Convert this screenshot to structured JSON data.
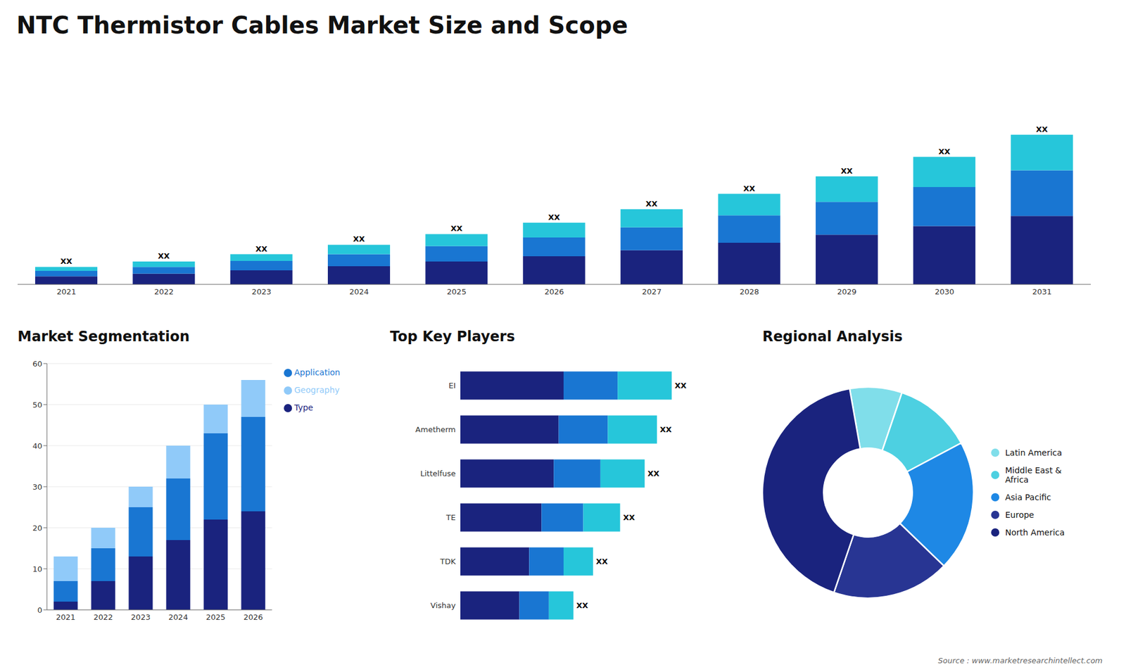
{
  "title": "NTC Thermistor Cables Market Size and Scope",
  "annotations": [
    "Source : www.marketresearchintellect.com"
  ],
  "chart_data": [
    {
      "type": "bar",
      "stacked": true,
      "categories": [
        "2021",
        "2022",
        "2023",
        "2024",
        "2025",
        "2026",
        "2027",
        "2028",
        "2029",
        "2030",
        "2031"
      ],
      "series": [
        {
          "color": "#1a237e",
          "values": [
            1.2,
            1.6,
            2.1,
            2.7,
            3.4,
            4.2,
            5.1,
            6.2,
            7.4,
            8.7,
            10.2
          ]
        },
        {
          "color": "#1976d2",
          "values": [
            0.8,
            1.0,
            1.4,
            1.8,
            2.3,
            2.8,
            3.4,
            4.1,
            4.9,
            5.8,
            6.8
          ]
        },
        {
          "color": "#26c6da",
          "values": [
            0.6,
            0.8,
            1.0,
            1.4,
            1.8,
            2.2,
            2.7,
            3.2,
            3.8,
            4.5,
            5.3
          ],
          "value_labels": [
            "XX",
            "XX",
            "XX",
            "XX",
            "XX",
            "XX",
            "XX",
            "XX",
            "XX",
            "XX",
            "XX"
          ]
        }
      ],
      "ylim": [
        0,
        32.335
      ],
      "tick_labels": "x"
    },
    {
      "type": "bar",
      "title": "Market Segmentation",
      "stacked": true,
      "categories": [
        "2021",
        "2022",
        "2023",
        "2024",
        "2025",
        "2026"
      ],
      "series": [
        {
          "name": "Type",
          "color": "#1a237e",
          "values": [
            2,
            7,
            13,
            17,
            22,
            24
          ]
        },
        {
          "name": "Application",
          "color": "#1976d2",
          "values": [
            5,
            8,
            12,
            15,
            21,
            23
          ]
        },
        {
          "name": "Geography",
          "color": "#90caf9",
          "values": [
            6,
            5,
            5,
            8,
            7,
            9
          ]
        }
      ],
      "ylim": [
        0,
        60
      ],
      "yticks": [
        0,
        10,
        20,
        30,
        40,
        50,
        60
      ],
      "grid": true,
      "legend": "right"
    },
    {
      "type": "bar",
      "title": "Top Key Players",
      "orientation": "horizontal",
      "stacked": true,
      "categories": [
        "EI",
        "Ametherm",
        "Littelfuse",
        "TE",
        "TDK",
        "Vishay"
      ],
      "series": [
        {
          "color": "#1a237e",
          "values": [
            0.42,
            0.4,
            0.38,
            0.33,
            0.28,
            0.24
          ]
        },
        {
          "color": "#1976d2",
          "values": [
            0.22,
            0.2,
            0.19,
            0.17,
            0.14,
            0.12
          ]
        },
        {
          "color": "#26c6da",
          "values": [
            0.22,
            0.2,
            0.18,
            0.15,
            0.12,
            0.1
          ],
          "value_labels": [
            "XX",
            "XX",
            "XX",
            "XX",
            "XX",
            "XX"
          ]
        }
      ],
      "xlim": [
        0,
        1.05
      ],
      "tick_labels": "y"
    },
    {
      "type": "pie",
      "title": "Regional Analysis",
      "categories": [
        "Latin America",
        "Middle East &\nAfrica",
        "Asia Pacific",
        "Europe",
        "North America"
      ],
      "values": [
        8,
        12,
        20,
        18,
        42
      ],
      "colors": [
        "#80deea",
        "#4dd0e1",
        "#1e88e5",
        "#283593",
        "#1a237e"
      ],
      "legend": "right"
    }
  ]
}
